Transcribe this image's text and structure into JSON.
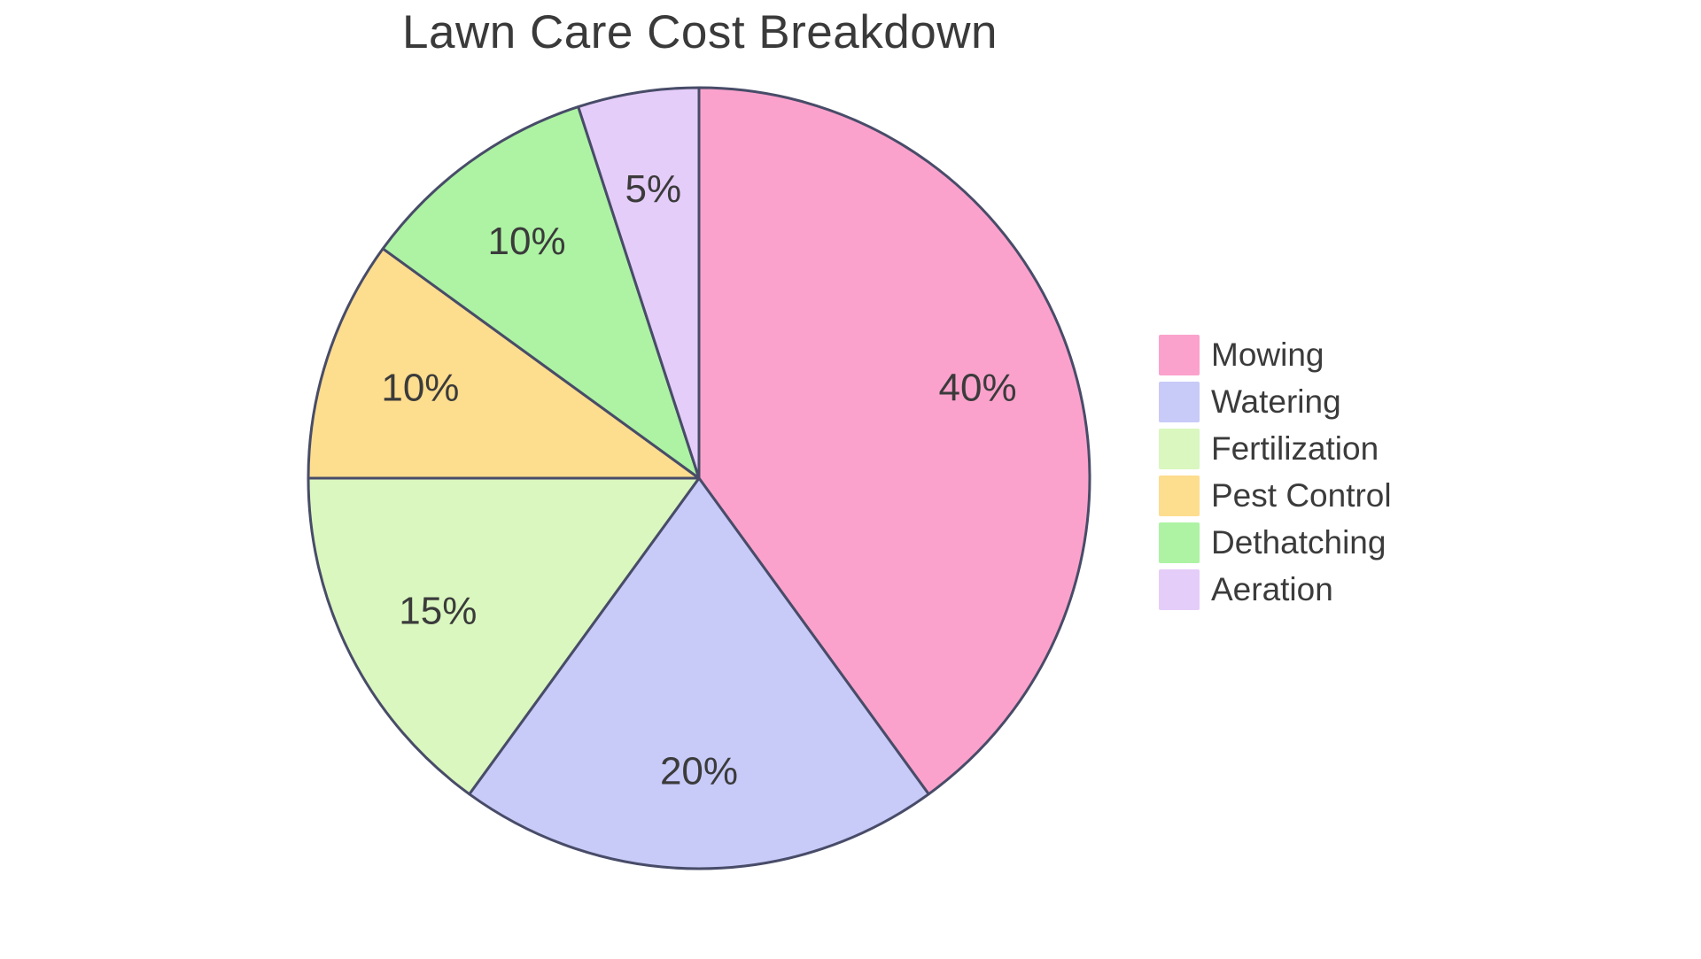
{
  "chart_data": {
    "type": "pie",
    "title": "Lawn Care Cost Breakdown",
    "legend_position": "right",
    "direction": "clockwise",
    "start_angle_deg": 0,
    "background": "#ffffff",
    "stroke_color": "#484c68",
    "stroke_width": 3,
    "label_color": "#3b3b3b",
    "title_color": "#3a3a3a",
    "slices": [
      {
        "label": "Mowing",
        "value": 40,
        "percent_label": "40%",
        "color": "#fba2cc"
      },
      {
        "label": "Watering",
        "value": 20,
        "percent_label": "20%",
        "color": "#c8caf8"
      },
      {
        "label": "Fertilization",
        "value": 15,
        "percent_label": "15%",
        "color": "#daf7bf"
      },
      {
        "label": "Pest Control",
        "value": 10,
        "percent_label": "10%",
        "color": "#fddd8e"
      },
      {
        "label": "Dethatching",
        "value": 10,
        "percent_label": "10%",
        "color": "#adf3a3"
      },
      {
        "label": "Aeration",
        "value": 5,
        "percent_label": "5%",
        "color": "#e5cdf9"
      }
    ]
  }
}
